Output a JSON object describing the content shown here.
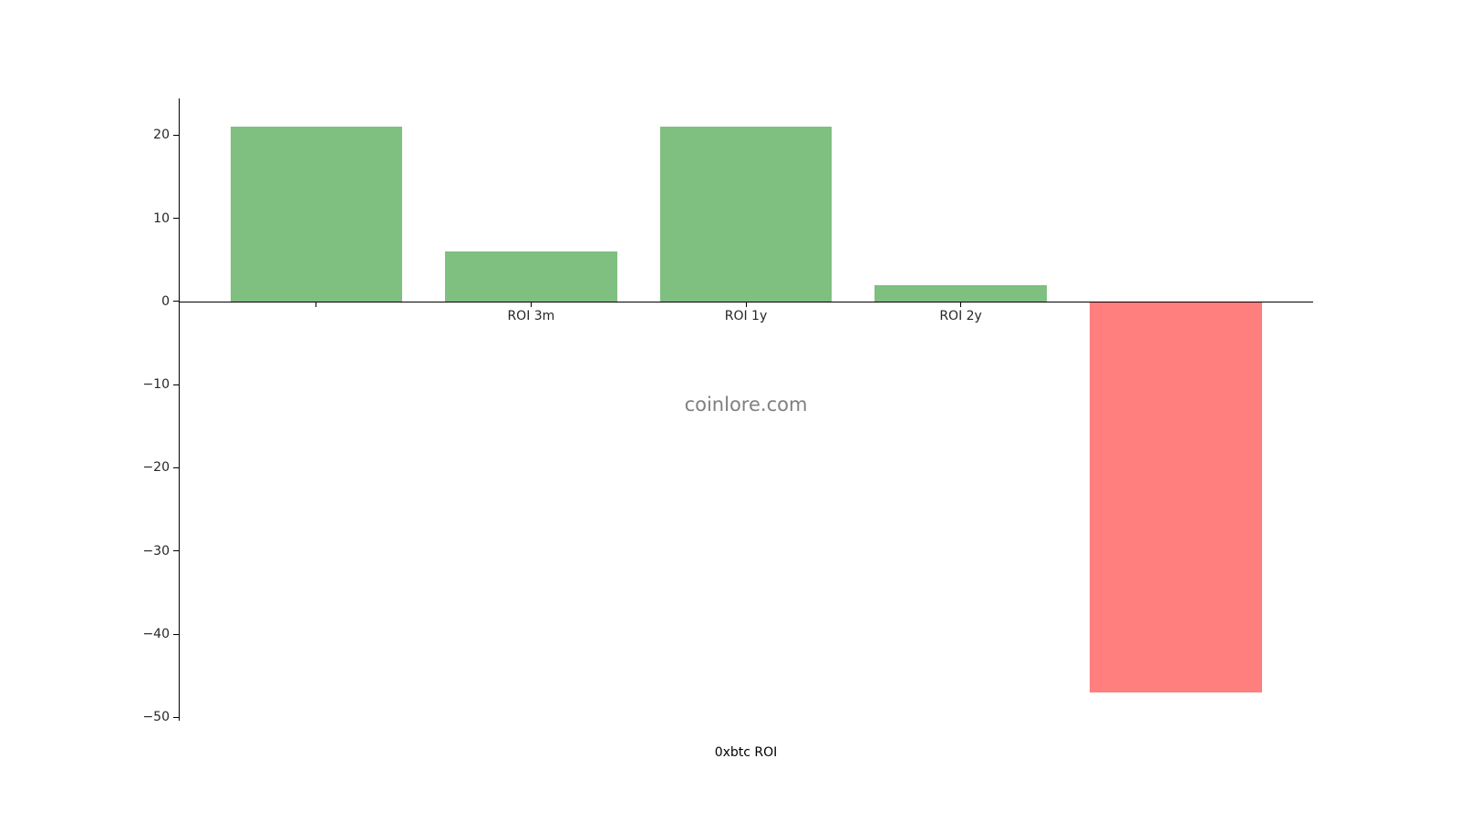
{
  "chart_data": {
    "type": "bar",
    "title": "",
    "xlabel": "0xbtc ROI",
    "ylabel": "",
    "watermark": "coinlore.com",
    "categories": [
      "",
      "ROI 3m",
      "ROI 1y",
      "ROI 2y",
      ""
    ],
    "x_tick_marks": [
      true,
      true,
      true,
      true,
      false
    ],
    "values": [
      21,
      6,
      21,
      2,
      -47
    ],
    "bar_colors": [
      "#7fbf7f",
      "#7fbf7f",
      "#7fbf7f",
      "#7fbf7f",
      "#ff7f7f"
    ],
    "yticks": [
      {
        "value": 20,
        "label": "20"
      },
      {
        "value": 10,
        "label": "10"
      },
      {
        "value": 0,
        "label": "0"
      },
      {
        "value": -10,
        "label": "−10"
      },
      {
        "value": -20,
        "label": "−20"
      },
      {
        "value": -30,
        "label": "−30"
      },
      {
        "value": -40,
        "label": "−40"
      },
      {
        "value": -50,
        "label": "−50"
      }
    ],
    "ylim": [
      -50.4,
      24.4
    ],
    "xlim": [
      -0.64,
      4.64
    ],
    "bar_width_units": 0.8,
    "grid": false,
    "legend": null,
    "colors": {
      "positive": "#7fbf7f",
      "negative": "#ff7f7f",
      "axis": "#000000",
      "tick_text": "#262626",
      "watermark": "#808080",
      "background": "#ffffff"
    }
  }
}
